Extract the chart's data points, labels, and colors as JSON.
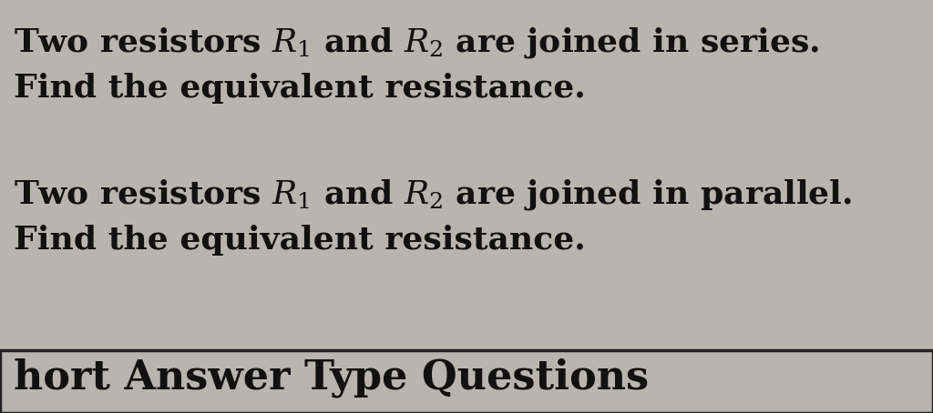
{
  "background_color": "#b8b4b0",
  "box_border_color": "#222222",
  "line1": "Two resistors $R_1$ and $R_2$ are joined in series.",
  "line2": "Find the equivalent resistance.",
  "line3": "Two resistors $R_1$ and $R_2$ are joined in parallel.",
  "line4": "Find the equivalent resistance.",
  "box_text": "hort Answer Type Questions",
  "text_color": "#111111",
  "font_size_main": 26,
  "font_size_box": 32,
  "figsize": [
    10.24,
    4.54
  ],
  "dpi": 100,
  "bg_gradient_top": "#c0bcb8",
  "bg_gradient_bottom": "#b0acaa"
}
